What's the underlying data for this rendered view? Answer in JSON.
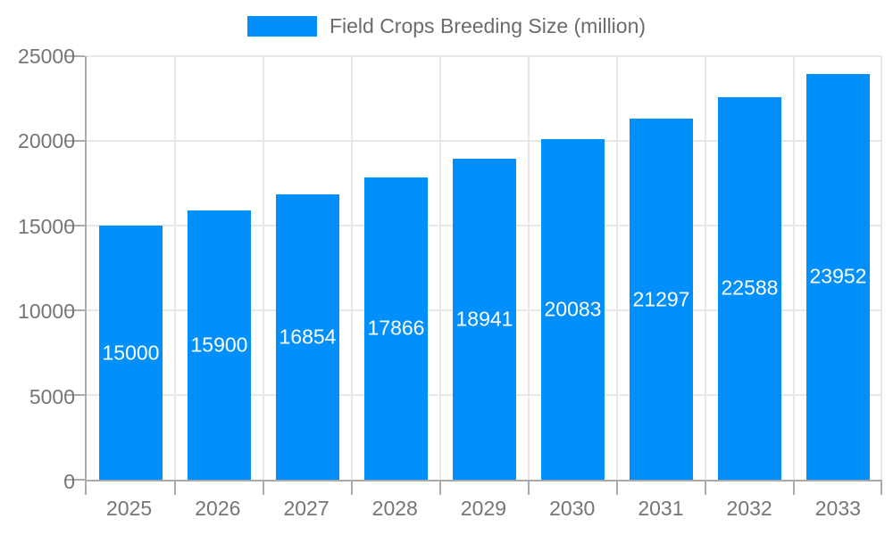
{
  "legend": {
    "label": "Field Crops Breeding Size (million)"
  },
  "colors": {
    "bar": "#008FFB",
    "grid": "#e7e7e7",
    "axis": "#aaaaaa",
    "tick_text": "#757575",
    "legend_text": "#6b6b6b",
    "bar_label_text": "#ffffff"
  },
  "chart_data": {
    "type": "bar",
    "title": "Field Crops Breeding Size (million)",
    "categories": [
      "2025",
      "2026",
      "2027",
      "2028",
      "2029",
      "2030",
      "2031",
      "2032",
      "2033"
    ],
    "values": [
      15000,
      15900,
      16854,
      17866,
      18941,
      20083,
      21297,
      22588,
      23952
    ],
    "series_name": "Field Crops Breeding Size (million)",
    "xlabel": "",
    "ylabel": "",
    "ylim": [
      0,
      25000
    ],
    "y_ticks": [
      0,
      5000,
      10000,
      15000,
      20000,
      25000
    ],
    "grid": true,
    "legend_position": "top",
    "data_labels": "inside-center"
  }
}
